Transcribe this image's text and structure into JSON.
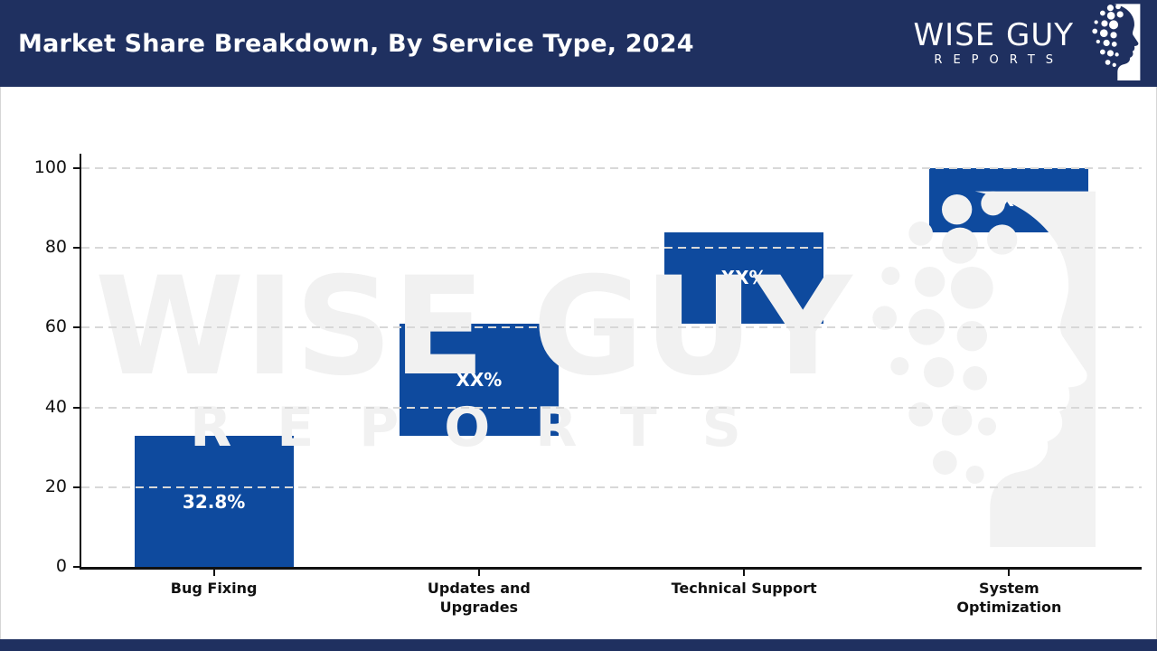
{
  "header": {
    "title": "Market Share Breakdown, By Service Type, 2024",
    "brand": {
      "name": "WISE GUY",
      "sub": "REPORTS"
    }
  },
  "watermark": {
    "line1": "WISE GUY",
    "line2": "REPORTS"
  },
  "colors": {
    "header_bg": "#1f3060",
    "footer_bg": "#1f3060",
    "bar": "#0e4a9e",
    "grid": "#d8d8d8",
    "axis": "#111111",
    "bar_label": "#ffffff",
    "watermark": "#f1f1f1"
  },
  "chart_data": {
    "type": "bar",
    "subtype": "floating-waterfall",
    "title": "Market Share Breakdown, By Service Type, 2024",
    "categories": [
      "Bug Fixing",
      "Updates and\nUpgrades",
      "Technical Support",
      "System\nOptimization"
    ],
    "series": [
      {
        "name": "Market Share",
        "segments": [
          {
            "category": "Bug Fixing",
            "start": 0,
            "end": 32.8,
            "label": "32.8%"
          },
          {
            "category": "Updates and Upgrades",
            "start": 32.8,
            "end": 61,
            "label": "XX%"
          },
          {
            "category": "Technical Support",
            "start": 61,
            "end": 84,
            "label": "XX%"
          },
          {
            "category": "System Optimization",
            "start": 84,
            "end": 100,
            "label": "XX%"
          }
        ]
      }
    ],
    "xlabel": "",
    "ylabel": "",
    "yticks": [
      0,
      20,
      40,
      60,
      80,
      100
    ],
    "ylim": [
      0,
      104
    ],
    "grid": "dashed-horizontal",
    "legend": null
  }
}
